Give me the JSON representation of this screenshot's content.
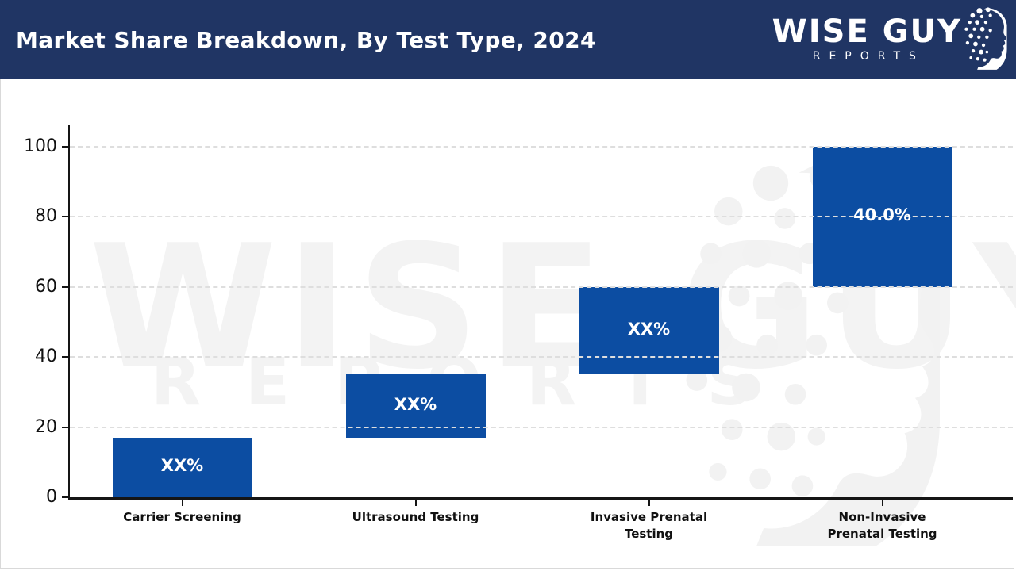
{
  "header": {
    "title": "Market Share Breakdown, By Test Type, 2024",
    "background_color": "#203564",
    "logo": {
      "wordmark": "WISE GUY",
      "subtext": "REPORTS"
    }
  },
  "watermark": {
    "wordmark": "WISE GUY",
    "subtext": "REPORTS"
  },
  "chart_data": {
    "type": "bar",
    "subtype": "waterfall",
    "title": "Market Share Breakdown, By Test Type, 2024",
    "categories": [
      "Carrier Screening",
      "Ultrasound Testing",
      "Invasive Prenatal Testing",
      "Non-Invasive Prenatal Testing"
    ],
    "tick_labels": [
      "Carrier Screening",
      "Ultrasound Testing",
      "Invasive Prenatal\nTesting",
      "Non-Invasive\nPrenatal Testing"
    ],
    "segments": [
      {
        "category": "Carrier Screening",
        "start": 0,
        "end": 17,
        "value": 17,
        "value_label": "XX%"
      },
      {
        "category": "Ultrasound Testing",
        "start": 17,
        "end": 35,
        "value": 18,
        "value_label": "XX%"
      },
      {
        "category": "Invasive Prenatal Testing",
        "start": 35,
        "end": 60,
        "value": 25,
        "value_label": "XX%"
      },
      {
        "category": "Non-Invasive Prenatal Testing",
        "start": 60,
        "end": 100,
        "value": 40,
        "value_label": "40.0%"
      }
    ],
    "xlabel": "",
    "ylabel": "",
    "ylim": [
      0,
      100
    ],
    "yticks": [
      0,
      20,
      40,
      60,
      80,
      100
    ],
    "grid": "horizontal-dashed",
    "grid_above_bars": true,
    "legend": "none",
    "bar_color": "#0c4da2",
    "bar_label_color": "#ffffff"
  }
}
